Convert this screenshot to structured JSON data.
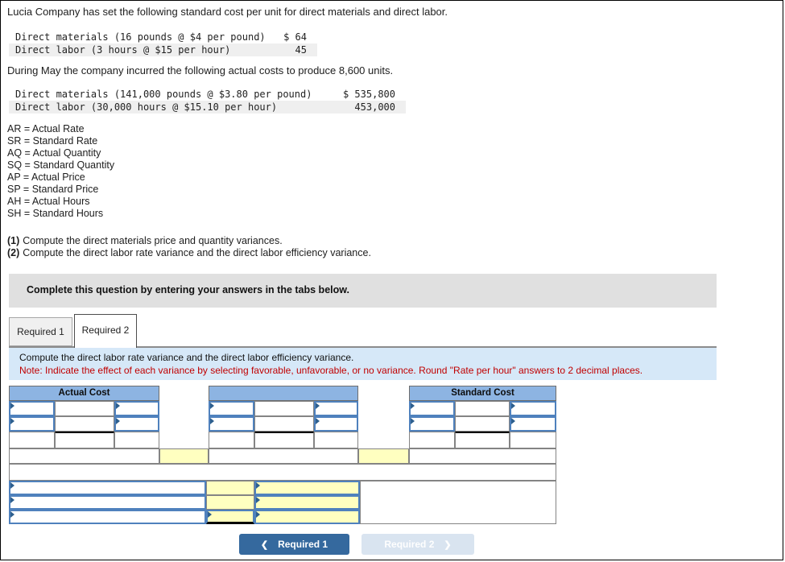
{
  "page": {
    "intro": "Lucia Company has set the following standard cost per unit for direct materials and direct labor.",
    "during_may": "During May the company incurred the following actual costs to produce 8,600 units.",
    "standard_costs": {
      "rows": [
        {
          "label": "Direct materials (16 pounds @ $4 per pound)",
          "value": "$ 64"
        },
        {
          "label": "Direct labor (3 hours @ $15 per hour)",
          "value": "45"
        }
      ]
    },
    "actual_costs": {
      "rows": [
        {
          "label": "Direct materials (141,000 pounds @ $3.80 per pound)",
          "value": "$ 535,800"
        },
        {
          "label": "Direct labor (30,000 hours @ $15.10 per hour)",
          "value": "453,000"
        }
      ]
    },
    "legend": [
      "AR = Actual Rate",
      "SR = Standard Rate",
      "AQ = Actual Quantity",
      "SQ = Standard Quantity",
      "AP = Actual Price",
      "SP = Standard Price",
      "AH = Actual Hours",
      "SH = Standard Hours"
    ],
    "tasks": [
      {
        "num": "(1)",
        "text": "Compute the direct materials price and quantity variances."
      },
      {
        "num": "(2)",
        "text": "Compute the direct labor rate variance and the direct labor efficiency variance."
      }
    ]
  },
  "panel": {
    "banner": "Complete this question by entering your answers in the tabs below.",
    "tabs": [
      {
        "label": "Required 1"
      },
      {
        "label": "Required 2"
      }
    ],
    "instruction": "Compute the direct labor rate variance and the direct labor efficiency variance.",
    "note": "Note: Indicate the effect of each variance by selecting favorable, unfavorable, or no variance. Round \"Rate per hour\" answers to 2 decimal places."
  },
  "worksheet": {
    "headers": [
      "Actual Cost",
      "",
      "Standard Cost"
    ]
  },
  "footer": {
    "prev_arrow": "❮",
    "prev_label": "Required 1",
    "next_label": "Required 2",
    "next_arrow": "❯"
  },
  "colors": {
    "header_blue": "#8db4e2",
    "input_border_blue": "#4f81bd",
    "highlight_yellow": "#ffffc0",
    "note_red": "#c00000",
    "banner_gray": "#e0e0e0",
    "panel_blue": "#d6e8f8",
    "button_blue": "#35699e",
    "button_disabled": "#d9e4f0"
  }
}
